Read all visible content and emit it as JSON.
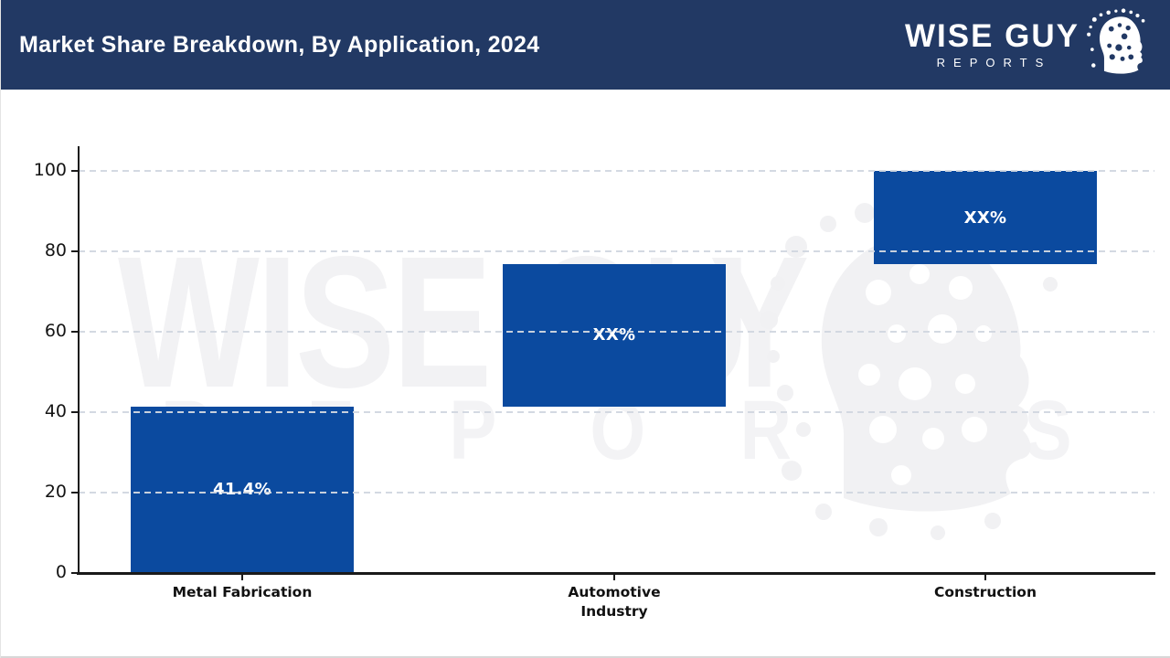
{
  "header": {
    "title": "Market Share Breakdown, By Application, 2024",
    "bg_color": "#223964",
    "logo": {
      "line1": "WISE GUY",
      "line2": "REPORTS"
    }
  },
  "chart_data": {
    "type": "bar",
    "subtype": "waterfall",
    "title": "Market Share Breakdown, By Application, 2024",
    "categories": [
      "Metal Fabrication",
      "Automotive\nIndustry",
      "Construction"
    ],
    "segments": [
      {
        "category": "Metal Fabrication",
        "label": "41.4%",
        "start": 0,
        "end": 41.4
      },
      {
        "category": "Automotive Industry",
        "label": "XX%",
        "start": 41.4,
        "end": 76.8
      },
      {
        "category": "Construction",
        "label": "XX%",
        "start": 76.8,
        "end": 100
      }
    ],
    "yticks": [
      0,
      20,
      40,
      60,
      80,
      100
    ],
    "ylim": [
      0,
      100
    ],
    "bar_color": "#0b4a9f",
    "grid": "dashed-horizontal",
    "legend": "none",
    "watermark": "WISE GUY REPORTS"
  },
  "watermark": {
    "word1": "WISE GU",
    "word2": "Y",
    "row": "R E P O R T S"
  }
}
